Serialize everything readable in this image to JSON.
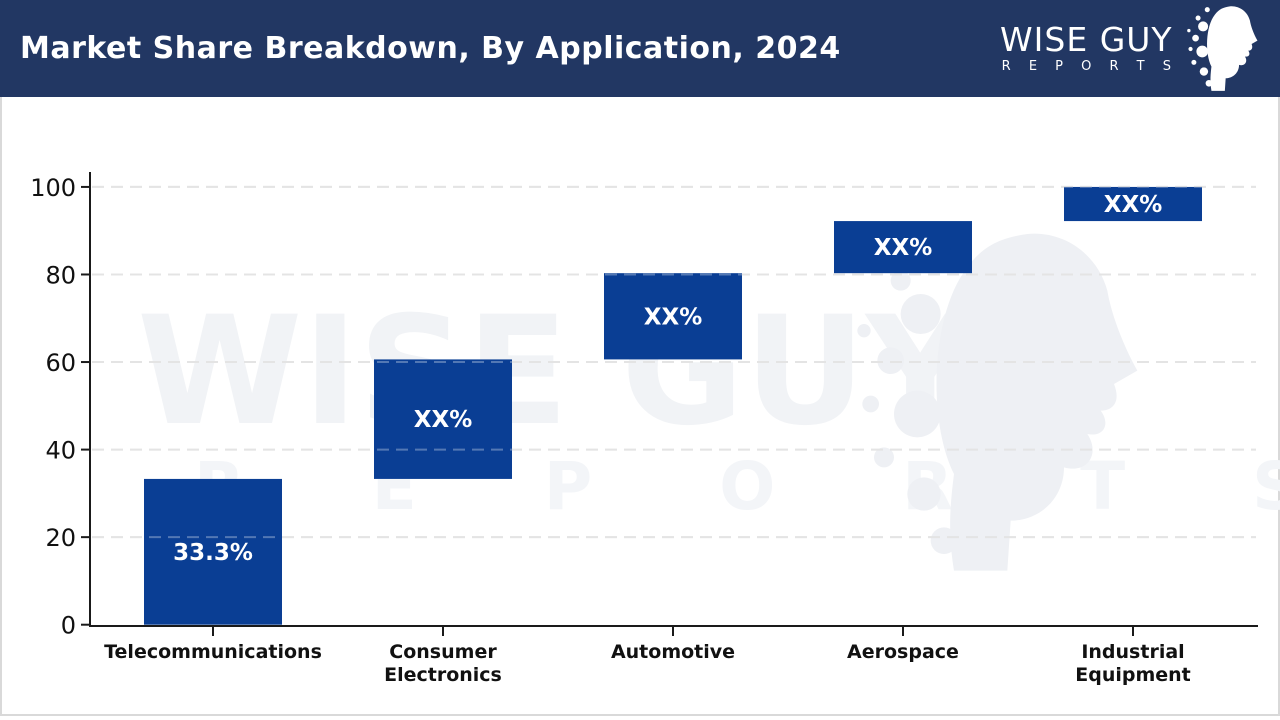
{
  "header": {
    "title": "Market Share Breakdown, By Application, 2024",
    "logo": {
      "line1": "WISE GUY",
      "line2": "R E P O R T S"
    }
  },
  "watermark": {
    "line1": "WISE GUY",
    "line2": "R E P O R T S"
  },
  "colors": {
    "header_bg": "#223763",
    "bar": "#0a3e94",
    "grid": "#d9d9d9",
    "grid_over_bar": "rgba(255,255,255,0.30)",
    "axis": "#1a1a1a",
    "tick_label": "#111111",
    "value_label": "#ffffff",
    "title_text": "#ffffff",
    "watermark_text": "#f1f3f6",
    "watermark_face": "#eef0f4"
  },
  "chart_data": {
    "type": "bar",
    "subtype": "waterfall",
    "title": "Market Share Breakdown, By Application, 2024",
    "categories": [
      "Telecommunications",
      "Consumer Electronics",
      "Automotive",
      "Aerospace",
      "Industrial Equipment"
    ],
    "category_lines": [
      [
        "Telecommunications"
      ],
      [
        "Consumer",
        "Electronics"
      ],
      [
        "Automotive"
      ],
      [
        "Aerospace"
      ],
      [
        "Industrial",
        "Equipment"
      ]
    ],
    "segments": [
      {
        "start": 0,
        "end": 33.3,
        "label": "33.3%"
      },
      {
        "start": 33.3,
        "end": 60.6,
        "label": "XX%"
      },
      {
        "start": 60.6,
        "end": 80.3,
        "label": "XX%"
      },
      {
        "start": 80.3,
        "end": 92.2,
        "label": "XX%"
      },
      {
        "start": 92.2,
        "end": 100,
        "label": "XX%"
      }
    ],
    "y_ticks": [
      0,
      20,
      40,
      60,
      80,
      100
    ],
    "ylim": [
      0,
      107
    ],
    "xlabel": "",
    "ylabel": "",
    "grid": "dashed-horizontal",
    "legend": "none"
  }
}
